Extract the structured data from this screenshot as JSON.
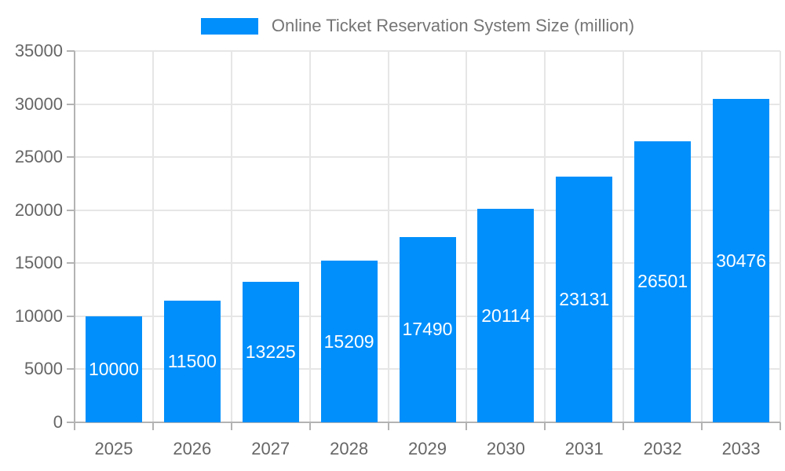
{
  "chart_data": {
    "type": "bar",
    "title": "Online Ticket Reservation System Size (million)",
    "categories": [
      "2025",
      "2026",
      "2027",
      "2028",
      "2029",
      "2030",
      "2031",
      "2032",
      "2033"
    ],
    "values": [
      10000,
      11500,
      13225,
      15209,
      17490,
      20114,
      23131,
      26501,
      30476
    ],
    "series": [
      {
        "name": "Online Ticket Reservation System Size (million)",
        "values": [
          10000,
          11500,
          13225,
          15209,
          17490,
          20114,
          23131,
          26501,
          30476
        ]
      }
    ],
    "xlabel": "",
    "ylabel": "",
    "ylim": [
      0,
      35000
    ],
    "yticks": [
      0,
      5000,
      10000,
      15000,
      20000,
      25000,
      30000,
      35000
    ],
    "grid": true,
    "legend_position": "top",
    "data_labels": "inside-center",
    "colors": {
      "bar": "#008FFB",
      "bar_label": "#ffffff",
      "axis_label": "#666666",
      "title": "#757575",
      "grid": "#e6e6e6",
      "axis_line": "#b3b3b3"
    }
  }
}
